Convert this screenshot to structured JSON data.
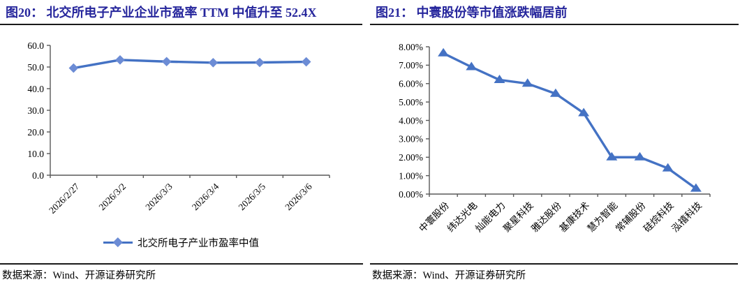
{
  "figure20": {
    "title": "图20： 北交所电子产业企业市盈率 TTM 中值升至 52.4X",
    "legend": "北交所电子产业市盈率中值",
    "source": "数据来源：Wind、开源证券研究所"
  },
  "figure21": {
    "title": "图21： 中寰股份等市值涨跌幅居前",
    "source": "数据来源：Wind、开源证券研究所"
  },
  "colors": {
    "title_navy": "#26269C",
    "rule_black": "#1a1a1a",
    "axis_gray": "#595959",
    "line_blue": "#4472C4",
    "diamond_blue": "#6C8CD5"
  },
  "chart_data": [
    {
      "type": "line",
      "title": "图20：北交所电子产业企业市盈率TTM中值升至52.4X",
      "categories": [
        "2026/2/27",
        "2026/3/2",
        "2026/3/3",
        "2026/3/4",
        "2026/3/5",
        "2026/3/6"
      ],
      "series": [
        {
          "name": "北交所电子产业市盈率中值",
          "values": [
            49.5,
            53.3,
            52.5,
            52.0,
            52.1,
            52.4
          ]
        }
      ],
      "values": [
        49.5,
        53.3,
        52.5,
        52.0,
        52.1,
        52.4
      ],
      "ylim": [
        0,
        60
      ],
      "ytick_step": 10,
      "ytick_format": "fixed1",
      "ytick_labels": [
        "0.0",
        "10.0",
        "20.0",
        "30.0",
        "40.0",
        "50.0",
        "60.0"
      ],
      "marker": "diamond",
      "grid": false,
      "legend_position": "bottom",
      "line_color": "#4472C4",
      "marker_color": "#6C8CD5",
      "axis_color": "#595959"
    },
    {
      "type": "line",
      "title": "图21：中寰股份等市值涨跌幅居前",
      "categories": [
        "中寰股份",
        "纬达光电",
        "灿能电力",
        "聚星科技",
        "雅达股份",
        "基康技术",
        "慧为智能",
        "常辅股份",
        "硅烷科技",
        "泓禧科技"
      ],
      "series": [
        {
          "name": "",
          "values": [
            7.65,
            6.9,
            6.2,
            6.0,
            5.45,
            4.4,
            2.0,
            2.0,
            1.4,
            0.3
          ]
        }
      ],
      "values": [
        7.65,
        6.9,
        6.2,
        6.0,
        5.45,
        4.4,
        2.0,
        2.0,
        1.4,
        0.3
      ],
      "ylim": [
        0,
        8
      ],
      "ytick_step": 1,
      "ytick_format": "percent2",
      "ytick_labels": [
        "0.00%",
        "1.00%",
        "2.00%",
        "3.00%",
        "4.00%",
        "5.00%",
        "6.00%",
        "7.00%",
        "8.00%"
      ],
      "marker": "triangle",
      "grid": false,
      "legend_position": "none",
      "line_color": "#4472C4",
      "marker_color": "#4472C4",
      "axis_color": "#595959"
    }
  ]
}
